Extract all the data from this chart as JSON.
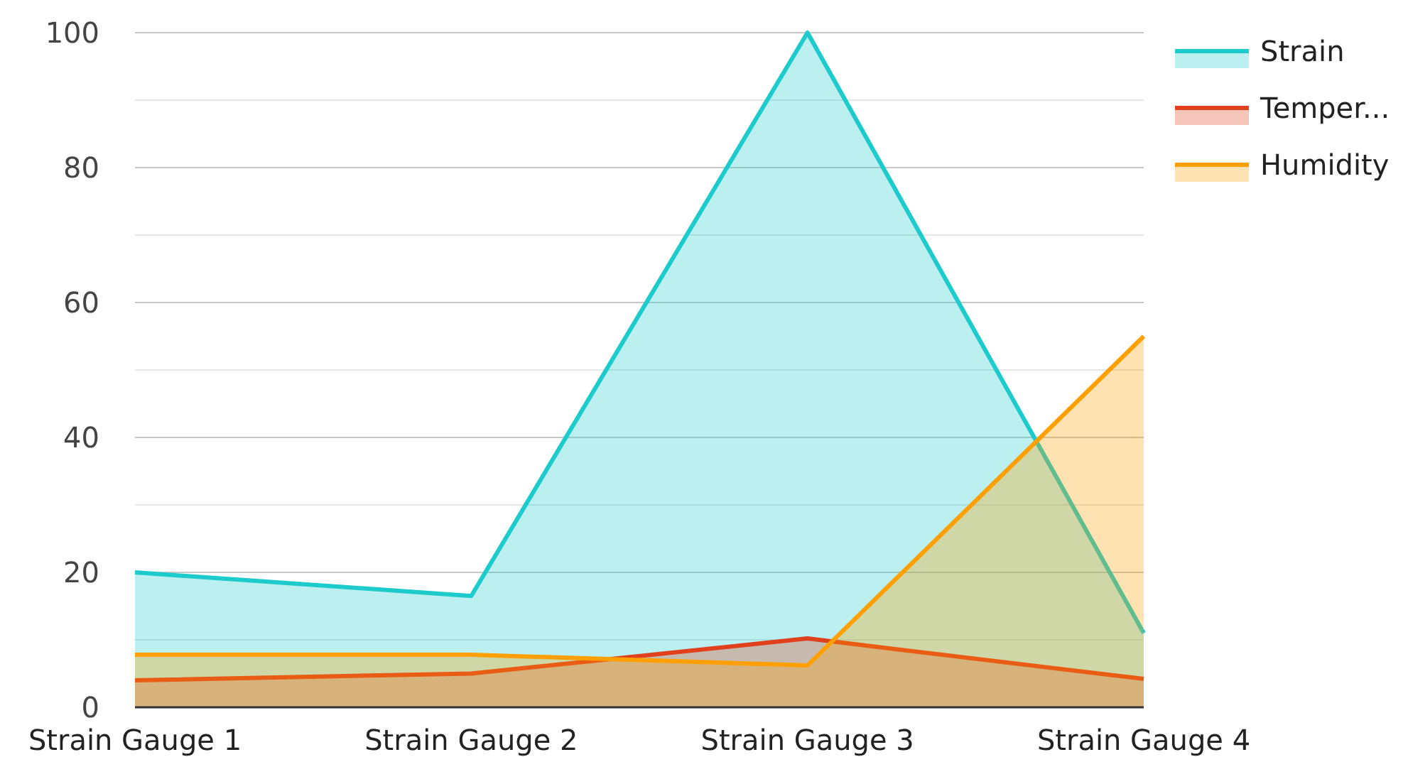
{
  "chart_data": {
    "type": "area",
    "categories": [
      "Strain Gauge 1",
      "Strain Gauge 2",
      "Strain Gauge 3",
      "Strain Gauge 4"
    ],
    "series": [
      {
        "name": "Strain",
        "color": "#1ecbcc",
        "values": [
          20,
          16.5,
          100,
          11
        ]
      },
      {
        "name": "Temper...",
        "color": "#e0401c",
        "values": [
          4,
          5,
          10.2,
          4.2
        ]
      },
      {
        "name": "Humidity",
        "color": "#ff9f00",
        "values": [
          7.8,
          7.8,
          6.2,
          55
        ]
      }
    ],
    "ylim": [
      0,
      100
    ],
    "yticks": [
      0,
      {
        "value": 10,
        "label": null
      },
      20,
      {
        "value": 30,
        "label": null
      },
      40,
      {
        "value": 50,
        "label": null
      },
      60,
      {
        "value": 70,
        "label": null
      },
      80,
      {
        "value": 90,
        "label": null
      },
      100
    ],
    "grid": "y",
    "legend": "top right"
  }
}
